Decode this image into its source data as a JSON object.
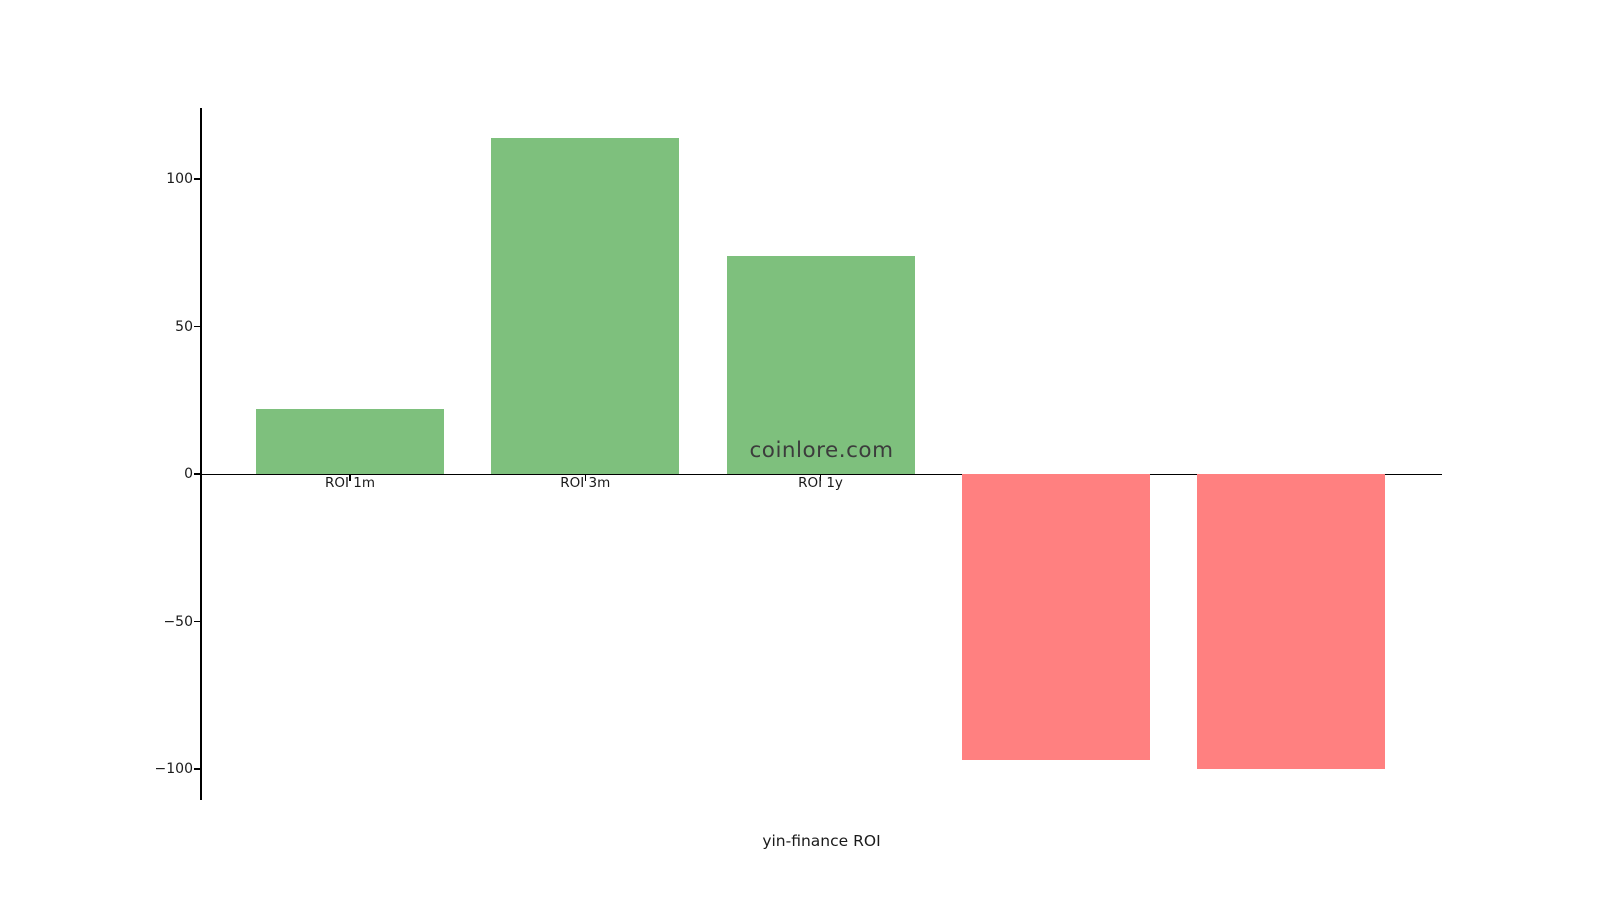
{
  "page": {
    "background": "#ffffff"
  },
  "watermark": {
    "text": "coinlore.com",
    "color": "#3c3c3c"
  },
  "chart_data": {
    "type": "bar",
    "title": "yin-finance ROI",
    "categories": [
      "ROI 1m",
      "ROI 3m",
      "ROI 1y",
      "",
      ""
    ],
    "values": [
      22,
      114,
      74,
      -97,
      -100
    ],
    "series": [
      {
        "name": "ROI",
        "values": [
          22,
          114,
          74,
          -97,
          -100
        ]
      }
    ],
    "bar_colors": [
      "#7EC07D",
      "#7EC07D",
      "#7EC07D",
      "#FF8080",
      "#FF8080"
    ],
    "positive_color": "#7EC07D",
    "negative_color": "#FF8080",
    "y_ticks": [
      100,
      50,
      0,
      -50,
      -100
    ],
    "y_tick_labels": [
      "100",
      "50",
      "0",
      "−50",
      "−100"
    ],
    "ylim": [
      -110,
      124
    ],
    "xlabel": "",
    "ylabel": "",
    "grid": false,
    "legend_position": "none",
    "annotations": [
      "coinlore.com"
    ]
  }
}
